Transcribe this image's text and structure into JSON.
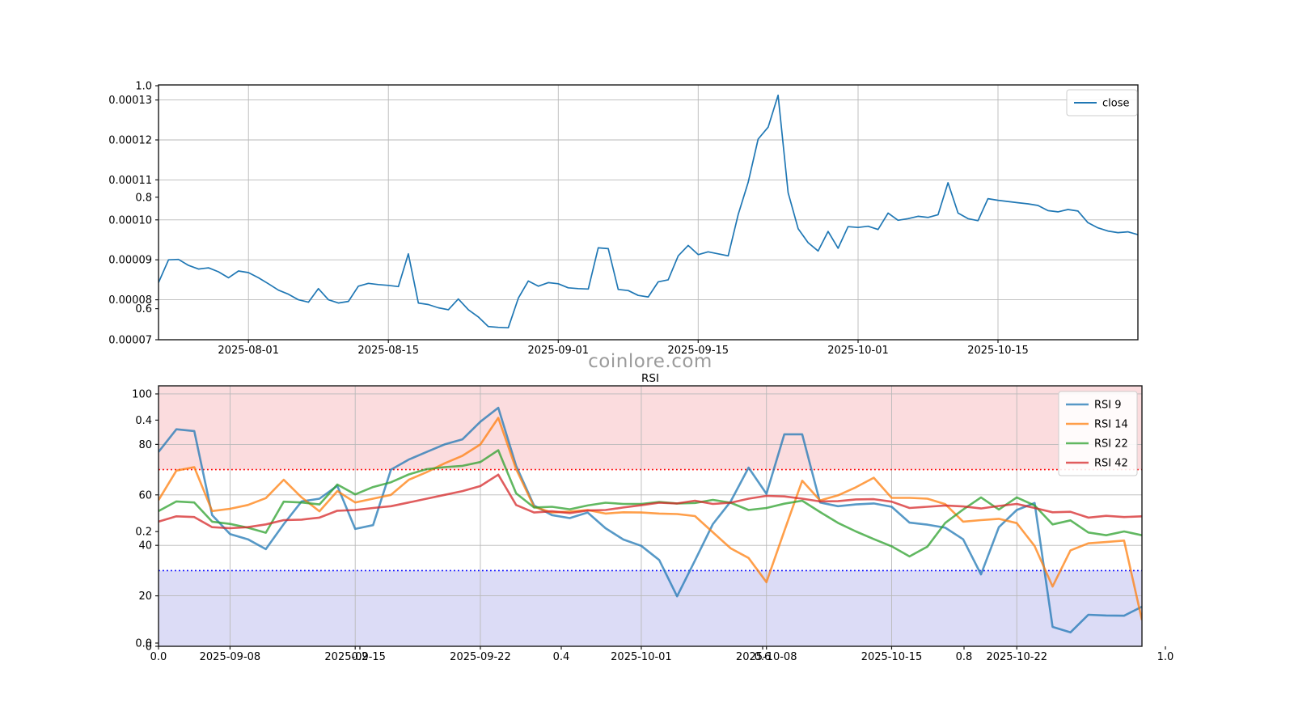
{
  "watermark": "coinlore.com",
  "rsi_title": "RSI",
  "styles": {
    "grid_color": "#b9b9b9",
    "spine_color": "#1a1a1a",
    "text_color": "#000000",
    "watermark_color": "#9b9b9b",
    "legend_border": "#cccccc",
    "legend_bg": "#ffffff",
    "overbought_band": "#fbdcde",
    "oversold_band": "#dcdcf6",
    "overbought_line": "#ff0000",
    "oversold_line": "#0000ff"
  },
  "overlay_axis": {
    "x_tick_labels": [
      "0.0",
      "0.2",
      "0.4",
      "0.6",
      "0.8",
      "1.0"
    ],
    "y_tick_labels": [
      "1.0",
      "0.8",
      "0.6",
      "0.4",
      "0.2",
      "0.0"
    ]
  },
  "chart_data": [
    {
      "type": "line",
      "panel": "price",
      "title": "",
      "legend_position": "upper right",
      "grid": true,
      "ylim": [
        7e-05,
        0.000133765
      ],
      "x_tick_labels": [
        "2025-08-01",
        "2025-08-15",
        "2025-09-01",
        "2025-09-15",
        "2025-10-01",
        "2025-10-15"
      ],
      "y_tick_values": [
        7e-05,
        8e-05,
        9e-05,
        0.0001,
        0.00011,
        0.00012,
        0.00013
      ],
      "y_tick_labels": [
        "0.00007",
        "0.00008",
        "0.00009",
        "0.00010",
        "0.00011",
        "0.00012",
        "0.00013"
      ],
      "x": [
        "2025-07-23",
        "2025-07-24",
        "2025-07-25",
        "2025-07-26",
        "2025-07-27",
        "2025-07-28",
        "2025-07-29",
        "2025-07-30",
        "2025-07-31",
        "2025-08-01",
        "2025-08-02",
        "2025-08-03",
        "2025-08-04",
        "2025-08-05",
        "2025-08-06",
        "2025-08-07",
        "2025-08-08",
        "2025-08-09",
        "2025-08-10",
        "2025-08-11",
        "2025-08-12",
        "2025-08-13",
        "2025-08-14",
        "2025-08-15",
        "2025-08-16",
        "2025-08-17",
        "2025-08-18",
        "2025-08-19",
        "2025-08-20",
        "2025-08-21",
        "2025-08-22",
        "2025-08-23",
        "2025-08-24",
        "2025-08-25",
        "2025-08-26",
        "2025-08-27",
        "2025-08-28",
        "2025-08-29",
        "2025-08-30",
        "2025-08-31",
        "2025-09-01",
        "2025-09-02",
        "2025-09-03",
        "2025-09-04",
        "2025-09-05",
        "2025-09-06",
        "2025-09-07",
        "2025-09-08",
        "2025-09-09",
        "2025-09-10",
        "2025-09-11",
        "2025-09-12",
        "2025-09-13",
        "2025-09-14",
        "2025-09-15",
        "2025-09-16",
        "2025-09-17",
        "2025-09-18",
        "2025-09-19",
        "2025-09-20",
        "2025-09-21",
        "2025-09-22",
        "2025-09-23",
        "2025-09-24",
        "2025-09-25",
        "2025-09-26",
        "2025-09-27",
        "2025-09-28",
        "2025-09-29",
        "2025-09-30",
        "2025-10-01",
        "2025-10-02",
        "2025-10-03",
        "2025-10-04",
        "2025-10-05",
        "2025-10-06",
        "2025-10-07",
        "2025-10-08",
        "2025-10-09",
        "2025-10-10",
        "2025-10-11",
        "2025-10-12",
        "2025-10-13",
        "2025-10-14",
        "2025-10-15",
        "2025-10-16",
        "2025-10-17",
        "2025-10-18",
        "2025-10-19",
        "2025-10-20",
        "2025-10-21",
        "2025-10-22",
        "2025-10-23",
        "2025-10-24",
        "2025-10-25",
        "2025-10-26",
        "2025-10-27",
        "2025-10-28",
        "2025-10-29"
      ],
      "series": [
        {
          "name": "close",
          "color": "#1f77b4",
          "values": [
            8.43e-05,
            9e-05,
            9.01e-05,
            8.86e-05,
            8.77e-05,
            8.8e-05,
            8.7e-05,
            8.55e-05,
            8.72e-05,
            8.68e-05,
            8.55e-05,
            8.4e-05,
            8.24e-05,
            8.14e-05,
            8e-05,
            7.94e-05,
            8.28e-05,
            8e-05,
            7.92e-05,
            7.96e-05,
            8.34e-05,
            8.41e-05,
            8.38e-05,
            8.36e-05,
            8.33e-05,
            9.15e-05,
            7.92e-05,
            7.88e-05,
            7.8e-05,
            7.75e-05,
            8.02e-05,
            7.75e-05,
            7.57e-05,
            7.33e-05,
            7.31e-05,
            7.3e-05,
            8.04e-05,
            8.47e-05,
            8.34e-05,
            8.43e-05,
            8.4e-05,
            8.3e-05,
            8.28e-05,
            8.27e-05,
            9.3e-05,
            9.28e-05,
            8.26e-05,
            8.23e-05,
            8.11e-05,
            8.07e-05,
            8.45e-05,
            8.5e-05,
            9.1e-05,
            9.36e-05,
            9.13e-05,
            9.2e-05,
            9.15e-05,
            9.1e-05,
            0.0001013,
            0.0001094,
            0.0001202,
            0.0001232,
            0.0001312,
            0.0001068,
            9.78e-05,
            9.43e-05,
            9.22e-05,
            9.71e-05,
            9.29e-05,
            9.83e-05,
            9.81e-05,
            9.84e-05,
            9.76e-05,
            0.0001017,
            9.99e-05,
            0.0001003,
            0.0001009,
            0.0001006,
            0.0001013,
            0.0001093,
            0.0001017,
            0.0001003,
            9.98e-05,
            0.0001053,
            0.0001049,
            0.0001046,
            0.0001043,
            0.000104,
            0.0001036,
            0.0001023,
            0.000102,
            0.0001026,
            0.0001022,
            9.93e-05,
            9.8e-05,
            9.72e-05,
            9.68e-05,
            9.7e-05,
            9.63e-05
          ]
        }
      ]
    },
    {
      "type": "line",
      "panel": "rsi",
      "title": "RSI",
      "legend_position": "upper right",
      "grid": true,
      "ylim": [
        0,
        103.2
      ],
      "overbought_level": 70,
      "oversold_level": 30,
      "hlines": [
        {
          "value": 70,
          "color": "#ff0000",
          "style": "dotted"
        },
        {
          "value": 30,
          "color": "#0000ff",
          "style": "dotted"
        }
      ],
      "bands": [
        {
          "from": 70,
          "to": 103.2,
          "color": "#fbdcde"
        },
        {
          "from": 0,
          "to": 30,
          "color": "#dcdcf6"
        }
      ],
      "x_tick_labels": [
        "2025-09-08",
        "2025-09-15",
        "2025-09-22",
        "2025-10-01",
        "2025-10-08",
        "2025-10-15",
        "2025-10-22"
      ],
      "y_tick_values": [
        0,
        20,
        40,
        60,
        80,
        100
      ],
      "y_tick_labels": [
        "0",
        "20",
        "40",
        "60",
        "80",
        "100"
      ],
      "x": [
        "2025-09-04",
        "2025-09-05",
        "2025-09-06",
        "2025-09-07",
        "2025-09-08",
        "2025-09-09",
        "2025-09-10",
        "2025-09-11",
        "2025-09-12",
        "2025-09-13",
        "2025-09-14",
        "2025-09-15",
        "2025-09-16",
        "2025-09-17",
        "2025-09-18",
        "2025-09-19",
        "2025-09-20",
        "2025-09-21",
        "2025-09-22",
        "2025-09-23",
        "2025-09-24",
        "2025-09-25",
        "2025-09-26",
        "2025-09-27",
        "2025-09-28",
        "2025-09-29",
        "2025-09-30",
        "2025-10-01",
        "2025-10-02",
        "2025-10-03",
        "2025-10-04",
        "2025-10-05",
        "2025-10-06",
        "2025-10-07",
        "2025-10-08",
        "2025-10-09",
        "2025-10-10",
        "2025-10-11",
        "2025-10-12",
        "2025-10-13",
        "2025-10-14",
        "2025-10-15",
        "2025-10-16",
        "2025-10-17",
        "2025-10-18",
        "2025-10-19",
        "2025-10-20",
        "2025-10-21",
        "2025-10-22",
        "2025-10-23",
        "2025-10-24",
        "2025-10-25",
        "2025-10-26",
        "2025-10-27",
        "2025-10-28",
        "2025-10-29"
      ],
      "series": [
        {
          "name": "RSI 9",
          "color": "#1f77b4",
          "values": [
            77,
            86,
            85.3,
            52,
            44.5,
            42.4,
            38.5,
            48.4,
            57.4,
            58.5,
            63.6,
            46.5,
            48,
            70,
            74,
            77,
            80,
            82,
            89,
            94.5,
            71.5,
            55.8,
            52,
            50.8,
            53,
            46.8,
            42.3,
            39.8,
            34.2,
            19.8,
            34,
            48.4,
            57.4,
            70.8,
            60.4,
            84,
            84,
            57,
            55.5,
            56.2,
            56.6,
            55.3,
            49,
            48.2,
            47,
            42.4,
            28.5,
            47.2,
            54,
            56.8,
            7.7,
            5.5,
            12.5,
            12.2,
            12.1,
            15.7
          ]
        },
        {
          "name": "RSI 14",
          "color": "#ff7f0e",
          "values": [
            57.9,
            69.6,
            71,
            53.6,
            54.5,
            56,
            58.7,
            66,
            59,
            53.5,
            61.5,
            57,
            58.5,
            60,
            66,
            69,
            72.5,
            75.5,
            80,
            90.5,
            70.2,
            55.3,
            53,
            53.4,
            54,
            52.6,
            53.1,
            53,
            52.6,
            52.4,
            51.6,
            45.2,
            38.8,
            35,
            25.4,
            45.7,
            65.6,
            57.8,
            59.8,
            63,
            66.8,
            58.8,
            58.8,
            58.5,
            56.3,
            49.4,
            50,
            50.5,
            48.8,
            39.7,
            23.7,
            38,
            40.8,
            41.3,
            41.9,
            10.4
          ]
        },
        {
          "name": "RSI 22",
          "color": "#2ca02c",
          "values": [
            53.6,
            57.4,
            57,
            49.4,
            48.5,
            47,
            45,
            57.3,
            57,
            56.2,
            64.1,
            60.2,
            63.1,
            65,
            68.1,
            70.2,
            71,
            71.5,
            73,
            77.7,
            60.6,
            55,
            55.3,
            54.3,
            55.8,
            56.9,
            56.4,
            56.4,
            57.2,
            56.6,
            56.8,
            58,
            56.9,
            54,
            54.8,
            56.5,
            57.7,
            53.2,
            48.9,
            45.5,
            42.5,
            39.6,
            35.6,
            39.5,
            48.9,
            54.2,
            59,
            54.2,
            59,
            55.8,
            48.3,
            49.9,
            45.1,
            44,
            45.5,
            44
          ]
        },
        {
          "name": "RSI 42",
          "color": "#d62728",
          "values": [
            49.4,
            51.5,
            51.2,
            47.2,
            46.8,
            47.2,
            48.3,
            50,
            50.2,
            51,
            53.7,
            54,
            54.8,
            55.5,
            57,
            58.5,
            60,
            61.5,
            63.5,
            68,
            56,
            53,
            53.5,
            52.8,
            53.8,
            54,
            55,
            55.9,
            56.9,
            56.6,
            57.7,
            56.4,
            56.9,
            58.5,
            59.6,
            59.4,
            58.5,
            57.4,
            57.5,
            58.2,
            58.3,
            57.3,
            54.8,
            55.3,
            55.8,
            55.4,
            54.6,
            55.6,
            56.4,
            54.8,
            53.1,
            53.3,
            51,
            51.7,
            51.2,
            51.5
          ]
        }
      ]
    }
  ]
}
